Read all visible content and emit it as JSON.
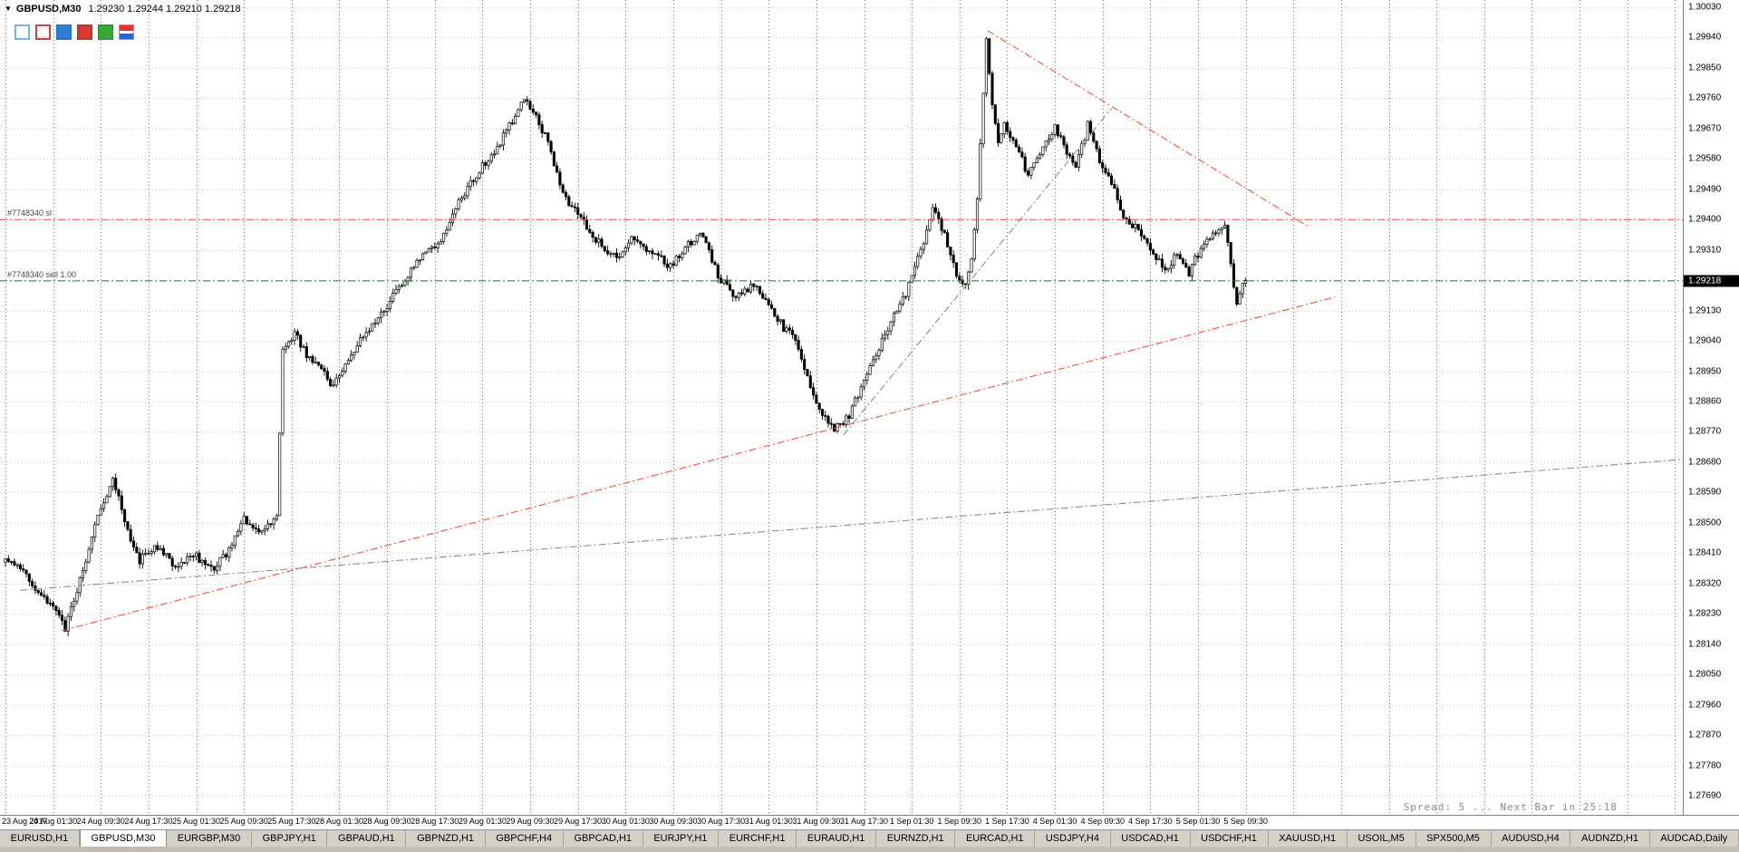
{
  "window": {
    "dropdown_icon": "▼",
    "symbol": "GBPUSD,M30",
    "ohlc_text": "1.29230 1.29244 1.29210 1.29218",
    "ohlc": {
      "open": "1.29230",
      "high": "1.29244",
      "low": "1.29210",
      "close": "1.29218"
    }
  },
  "toolbar": {
    "swatches": [
      {
        "name": "outline-blue-swatch",
        "fill": "#ffffff",
        "border": "#7ab1e8"
      },
      {
        "name": "outline-red-swatch",
        "fill": "#ffffff",
        "border": "#d04038"
      },
      {
        "name": "blue-swatch",
        "fill": "#2e7fd6",
        "border": "#2a74c4"
      },
      {
        "name": "red-swatch",
        "fill": "#d63a30",
        "border": "#c0342b"
      },
      {
        "name": "green-swatch",
        "fill": "#3aa73a",
        "border": "#349634"
      },
      {
        "name": "striped-flag-swatch",
        "stripes": [
          "#e83030",
          "#ffffff",
          "#2e62d6"
        ]
      }
    ]
  },
  "status": {
    "text": "Spread: 5 ... Next Bar in 25:18"
  },
  "chart_data": {
    "type": "candlestick",
    "symbol": "GBPUSD",
    "timeframe": "M30",
    "price_axis": {
      "max": 1.3003,
      "min": 1.2769,
      "step": 0.0009,
      "current": "1.29218",
      "labels": [
        "1.30030",
        "1.29940",
        "1.29850",
        "1.29760",
        "1.29670",
        "1.29580",
        "1.29490",
        "1.29400",
        "1.29310",
        "1.29220",
        "1.29130",
        "1.29040",
        "1.28950",
        "1.28860",
        "1.28770",
        "1.28680",
        "1.28590",
        "1.28500",
        "1.28410",
        "1.28320",
        "1.28230",
        "1.28140",
        "1.28050",
        "1.27960",
        "1.27870",
        "1.27780",
        "1.27690"
      ]
    },
    "time_labels": [
      "23 Aug 2017",
      "24 Aug 01:30",
      "24 Aug 09:30",
      "24 Aug 17:30",
      "25 Aug 01:30",
      "25 Aug 09:30",
      "25 Aug 17:30",
      "28 Aug 01:30",
      "28 Aug 09:30",
      "28 Aug 17:30",
      "29 Aug 01:30",
      "29 Aug 09:30",
      "29 Aug 17:30",
      "30 Aug 01:30",
      "30 Aug 09:30",
      "30 Aug 17:30",
      "31 Aug 01:30",
      "31 Aug 09:30",
      "31 Aug 17:30",
      "1 Sep 01:30",
      "1 Sep 09:30",
      "1 Sep 17:30",
      "4 Sep 01:30",
      "4 Sep 09:30",
      "4 Sep 17:30",
      "5 Sep 01:30",
      "5 Sep 09:30"
    ],
    "bars_per_label": 16,
    "bar_count": 417,
    "seed": 9,
    "body_noise": 0.00012,
    "wick_noise": 0.00016,
    "colors": {
      "grid_h": "#c9c9c9",
      "grid_v": "#6e6e6e",
      "candle": "#000000",
      "order_label": "#444444"
    },
    "price_path": [
      [
        0,
        1.2839
      ],
      [
        6,
        1.2836
      ],
      [
        12,
        1.283
      ],
      [
        18,
        1.2824
      ],
      [
        21,
        1.2819
      ],
      [
        26,
        1.2833
      ],
      [
        31,
        1.2849
      ],
      [
        37,
        1.2864
      ],
      [
        42,
        1.2847
      ],
      [
        46,
        1.2839
      ],
      [
        52,
        1.2843
      ],
      [
        58,
        1.2837
      ],
      [
        64,
        1.2841
      ],
      [
        70,
        1.2836
      ],
      [
        76,
        1.2842
      ],
      [
        81,
        1.2851
      ],
      [
        85,
        1.2847
      ],
      [
        90,
        1.285
      ],
      [
        92,
        1.2853
      ],
      [
        94,
        1.2901
      ],
      [
        98,
        1.2906
      ],
      [
        102,
        1.29
      ],
      [
        106,
        1.2897
      ],
      [
        110,
        1.2891
      ],
      [
        113,
        1.2894
      ],
      [
        118,
        1.2901
      ],
      [
        123,
        1.2908
      ],
      [
        128,
        1.2913
      ],
      [
        134,
        1.2921
      ],
      [
        140,
        1.2928
      ],
      [
        147,
        1.2934
      ],
      [
        153,
        1.2945
      ],
      [
        158,
        1.2952
      ],
      [
        162,
        1.2957
      ],
      [
        167,
        1.2963
      ],
      [
        171,
        1.2969
      ],
      [
        175,
        1.2976
      ],
      [
        178,
        1.2972
      ],
      [
        182,
        1.2965
      ],
      [
        186,
        1.2953
      ],
      [
        190,
        1.2945
      ],
      [
        195,
        1.2939
      ],
      [
        200,
        1.2933
      ],
      [
        206,
        1.2929
      ],
      [
        212,
        1.2935
      ],
      [
        218,
        1.293
      ],
      [
        224,
        1.2926
      ],
      [
        229,
        1.2932
      ],
      [
        235,
        1.2936
      ],
      [
        240,
        1.2923
      ],
      [
        246,
        1.2917
      ],
      [
        252,
        1.2921
      ],
      [
        258,
        1.2913
      ],
      [
        262,
        1.2908
      ],
      [
        266,
        1.2905
      ],
      [
        270,
        1.2893
      ],
      [
        274,
        1.2884
      ],
      [
        279,
        1.2878
      ],
      [
        284,
        1.2882
      ],
      [
        288,
        1.289
      ],
      [
        292,
        1.2898
      ],
      [
        297,
        1.2908
      ],
      [
        303,
        1.2918
      ],
      [
        308,
        1.2931
      ],
      [
        312,
        1.2943
      ],
      [
        316,
        1.2936
      ],
      [
        320,
        1.2923
      ],
      [
        323,
        1.2921
      ],
      [
        325,
        1.2929
      ],
      [
        327,
        1.2946
      ],
      [
        329,
        1.2978
      ],
      [
        330,
        1.2993
      ],
      [
        332,
        1.2974
      ],
      [
        334,
        1.2963
      ],
      [
        336,
        1.2969
      ],
      [
        340,
        1.2962
      ],
      [
        344,
        1.2953
      ],
      [
        348,
        1.296
      ],
      [
        353,
        1.2967
      ],
      [
        357,
        1.296
      ],
      [
        360,
        1.2955
      ],
      [
        364,
        1.2968
      ],
      [
        368,
        1.2958
      ],
      [
        372,
        1.2951
      ],
      [
        376,
        1.2941
      ],
      [
        381,
        1.2937
      ],
      [
        385,
        1.2931
      ],
      [
        390,
        1.2925
      ],
      [
        394,
        1.293
      ],
      [
        398,
        1.2924
      ],
      [
        400,
        1.2928
      ],
      [
        404,
        1.2933
      ],
      [
        407,
        1.2937
      ],
      [
        410,
        1.2939
      ],
      [
        412,
        1.2926
      ],
      [
        414,
        1.2915
      ],
      [
        416,
        1.2922
      ]
    ],
    "order_lines": [
      {
        "name": "stop-loss",
        "label": "#7748340 sl",
        "price": 1.294,
        "color": "#ff4a42"
      },
      {
        "name": "sell-order",
        "label": "#7748340 sell 1.00",
        "price": 1.29218,
        "color": "#0c8a0c"
      }
    ],
    "trend_lines": [
      {
        "name": "red-descending",
        "from": [
          329.5,
          1.2996
        ],
        "to": [
          437,
          1.2938
        ],
        "color": "#ff4a42"
      },
      {
        "name": "red-ascending",
        "from": [
          19,
          1.2818
        ],
        "to": [
          446,
          1.2917
        ],
        "color": "#ff4a42"
      },
      {
        "name": "gray-ascending-shallow",
        "from": [
          5,
          1.283
        ],
        "to": [
          565,
          1.2869
        ],
        "color": "#8c8c8c"
      },
      {
        "name": "gray-ascending-steep",
        "from": [
          281,
          1.2876
        ],
        "to": [
          371,
          1.2973
        ],
        "color": "#8c8c8c"
      }
    ]
  },
  "tabs": {
    "active_index": 1,
    "items": [
      "EURUSD,H1",
      "GBPUSD,M30",
      "EURGBP,M30",
      "GBPJPY,H1",
      "GBPAUD,H1",
      "GBPNZD,H1",
      "GBPCHF,H4",
      "GBPCAD,H1",
      "EURJPY,H1",
      "EURCHF,H1",
      "EURAUD,H1",
      "EURNZD,H1",
      "EURCAD,H1",
      "USDJPY,H4",
      "USDCAD,H1",
      "USDCHF,H1",
      "XAUUSD,H1",
      "USOIL,M5",
      "SPX500,M5",
      "AUDUSD,H4",
      "AUDNZD,H1",
      "AUDCAD,Daily"
    ]
  }
}
